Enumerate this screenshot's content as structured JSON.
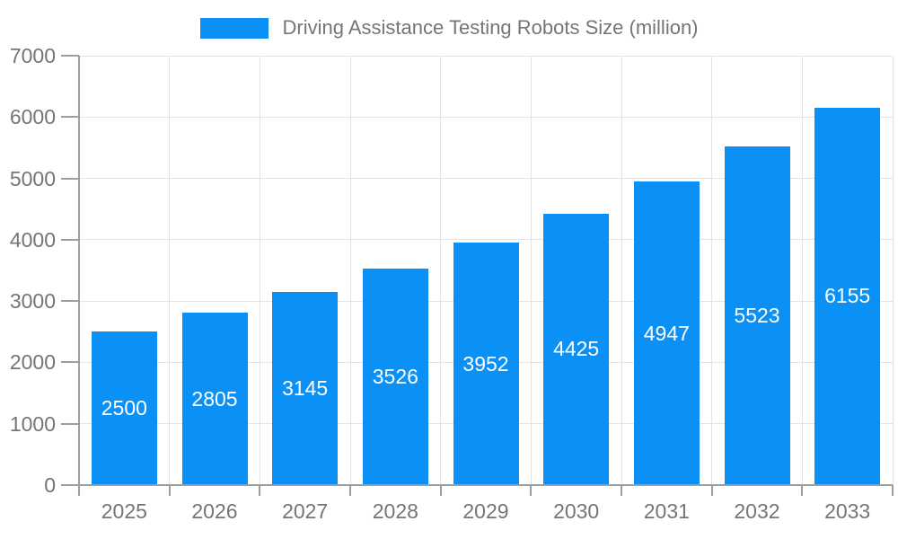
{
  "chart_data": {
    "type": "bar",
    "title": "Driving Assistance Testing Robots Size (million)",
    "categories": [
      "2025",
      "2026",
      "2027",
      "2028",
      "2029",
      "2030",
      "2031",
      "2032",
      "2033"
    ],
    "values": [
      2500,
      2805,
      3145,
      3526,
      3952,
      4425,
      4947,
      5523,
      6155
    ],
    "xlabel": "",
    "ylabel": "",
    "ylim": [
      0,
      7000
    ],
    "ytick_step": 1000,
    "y_tick_labels": [
      "0",
      "1000",
      "2000",
      "3000",
      "4000",
      "5000",
      "6000",
      "7000"
    ],
    "bar_value_labels_visible": true,
    "grid": true,
    "legend_position": "top-center"
  },
  "colors": {
    "bar": "#0B90F5",
    "axis": "#9E9E9E",
    "gridline": "#E3E3E3",
    "tick_text": "#757575",
    "bar_label_text": "#FFFFFF",
    "background": "#FFFFFF"
  }
}
